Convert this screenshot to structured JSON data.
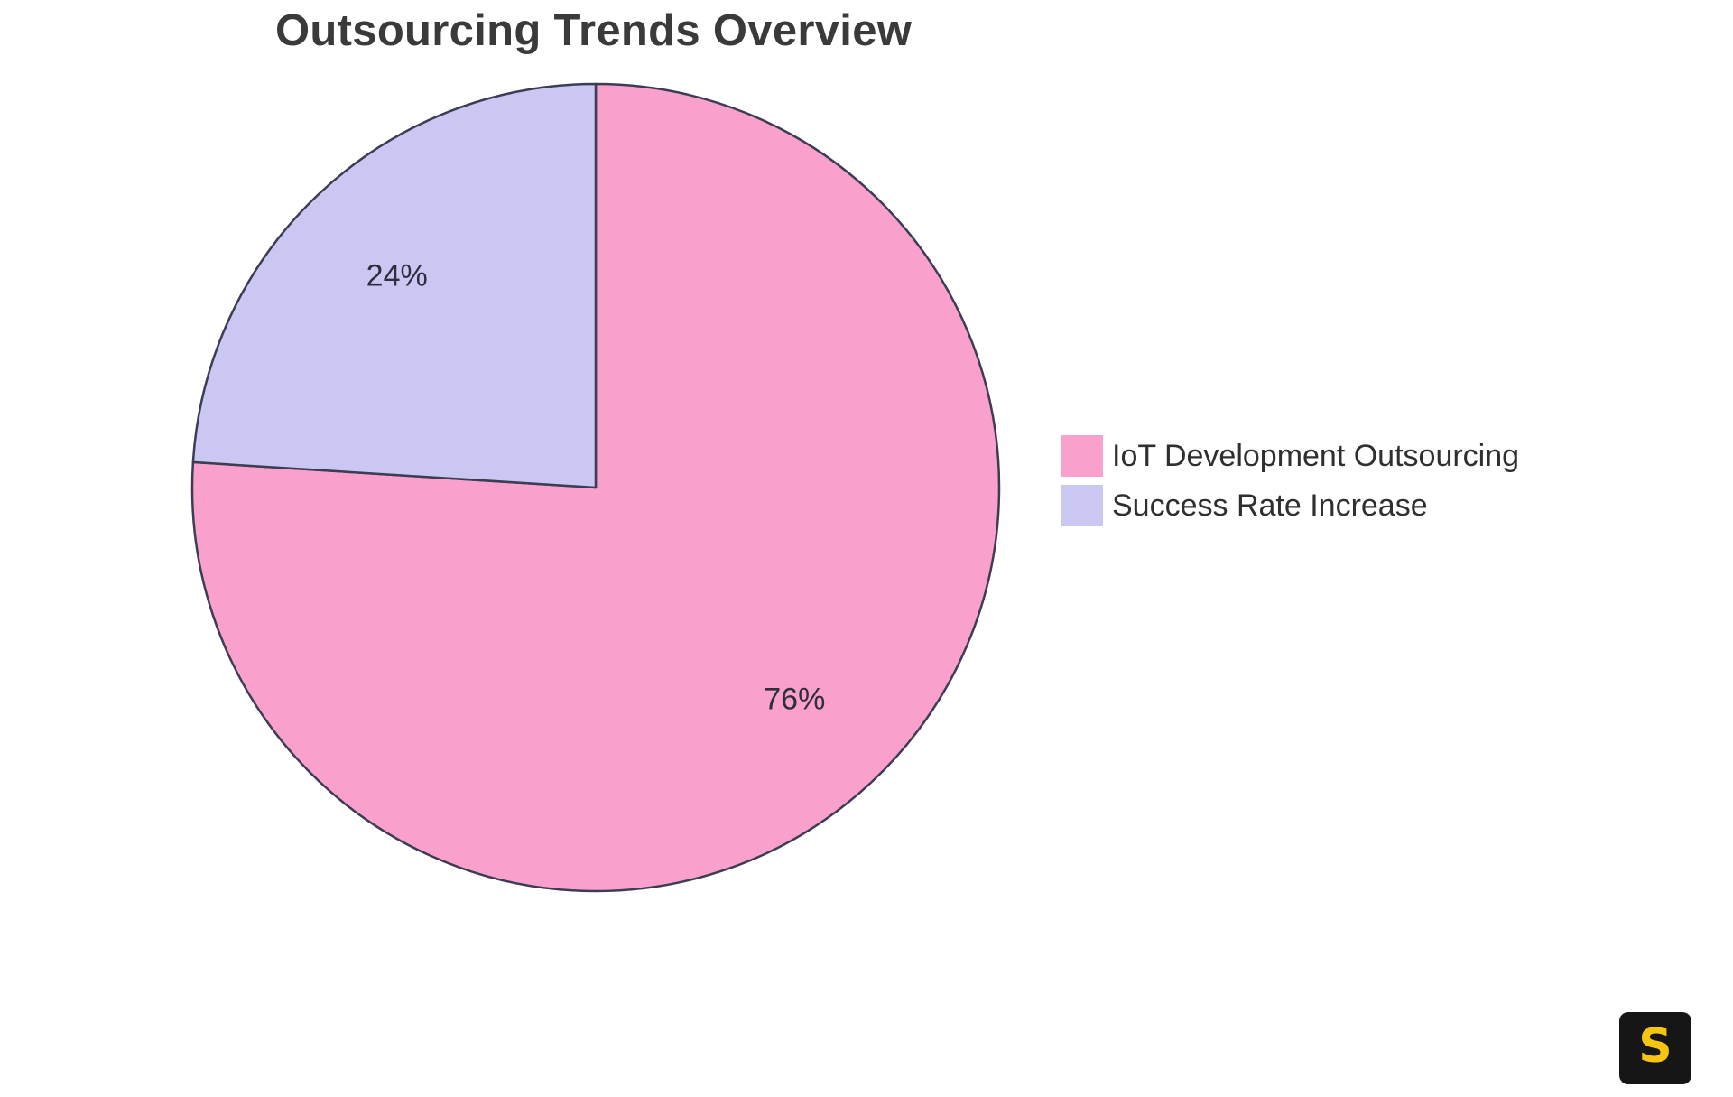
{
  "chart_data": {
    "type": "pie",
    "title": "Outsourcing Trends Overview",
    "labels": [
      "IoT Development Outsourcing",
      "Success Rate Increase"
    ],
    "values": [
      76,
      24
    ],
    "value_labels": [
      "76%",
      "24%"
    ],
    "colors": [
      "#F9A0CC",
      "#CBC7F3"
    ],
    "stroke_color": "#3C3C55",
    "start_angle": "top",
    "direction": "clockwise",
    "legend_position": "right"
  },
  "legend": {
    "items": [
      {
        "label": "IoT Development Outsourcing",
        "color": "#F9A0CC"
      },
      {
        "label": "Success Rate Increase",
        "color": "#CBC7F3"
      }
    ]
  },
  "branding": {
    "logo_letter": "S",
    "logo_bg": "#161616",
    "logo_color": "#F6C50F"
  }
}
